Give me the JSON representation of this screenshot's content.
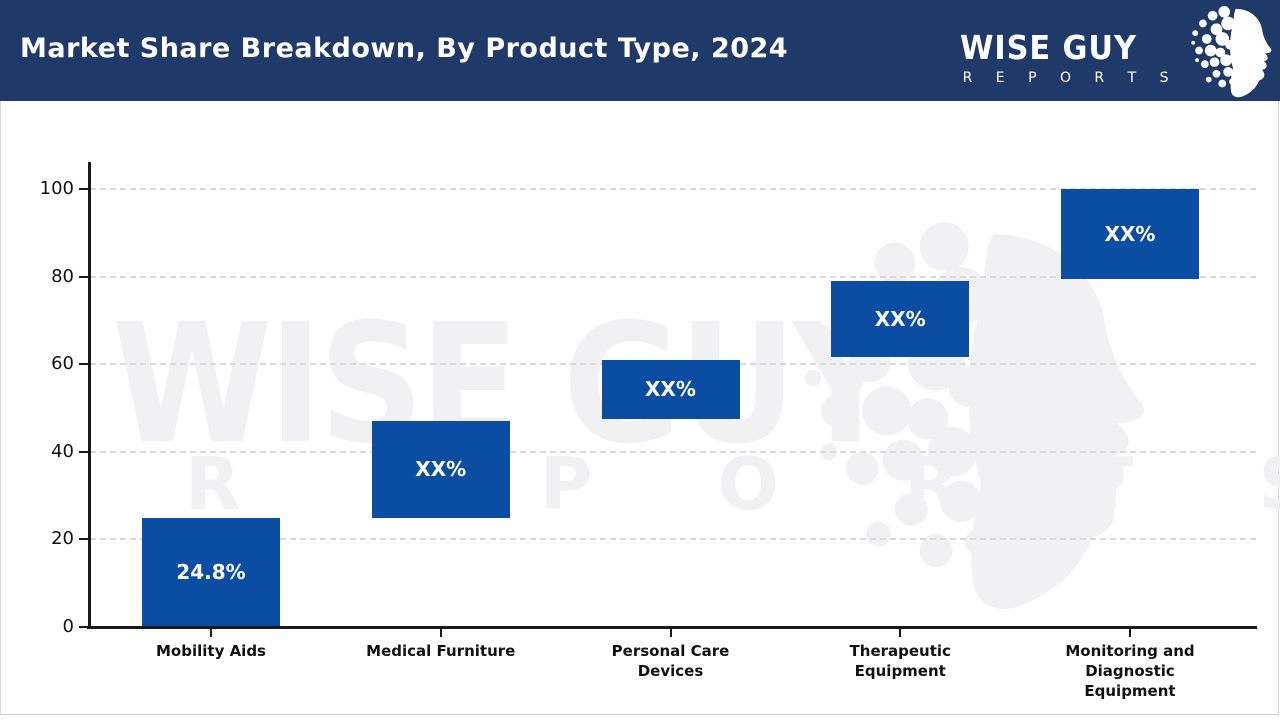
{
  "header": {
    "title": "Market Share Breakdown, By Product Type, 2024",
    "logo": {
      "line1": "WISE GUY",
      "line2": "R E P O R T S"
    }
  },
  "watermark": {
    "line1": "WISE GUY",
    "line2": "R E P O R T S"
  },
  "colors": {
    "header_bg": "#1f3a68",
    "bar": "#0b4da2",
    "bar_label": "#ffffff",
    "grid": "#d9d9d9",
    "axis": "#1a1a1a",
    "watermark": "#f1f1f3"
  },
  "chart_data": {
    "type": "bar",
    "subtype": "waterfall-style floating segments",
    "title": "Market Share Breakdown, By Product Type, 2024",
    "categories": [
      "Mobility Aids",
      "Medical Furniture",
      "Personal Care Devices",
      "Therapeutic Equipment",
      "Monitoring and Diagnostic Equipment"
    ],
    "category_label_lines": [
      [
        "Mobility Aids"
      ],
      [
        "Medical Furniture"
      ],
      [
        "Personal Care",
        "Devices"
      ],
      [
        "Therapeutic",
        "Equipment"
      ],
      [
        "Monitoring and",
        "Diagnostic",
        "Equipment"
      ]
    ],
    "segments": [
      {
        "category": "Mobility Aids",
        "start": 0,
        "end": 24.8,
        "label": "24.8%"
      },
      {
        "category": "Medical Furniture",
        "start": 24.8,
        "end": 47.0,
        "label": "XX%"
      },
      {
        "category": "Personal Care Devices",
        "start": 47.5,
        "end": 61.0,
        "label": "XX%"
      },
      {
        "category": "Therapeutic Equipment",
        "start": 61.5,
        "end": 79.0,
        "label": "XX%"
      },
      {
        "category": "Monitoring and Diagnostic Equipment",
        "start": 79.5,
        "end": 100.0,
        "label": "XX%"
      }
    ],
    "ylabel": "",
    "xlabel": "",
    "yticks": [
      0,
      20,
      40,
      60,
      80,
      100
    ],
    "ylim": [
      0,
      106
    ],
    "grid": true,
    "grid_style": "dashed",
    "legend": false
  }
}
